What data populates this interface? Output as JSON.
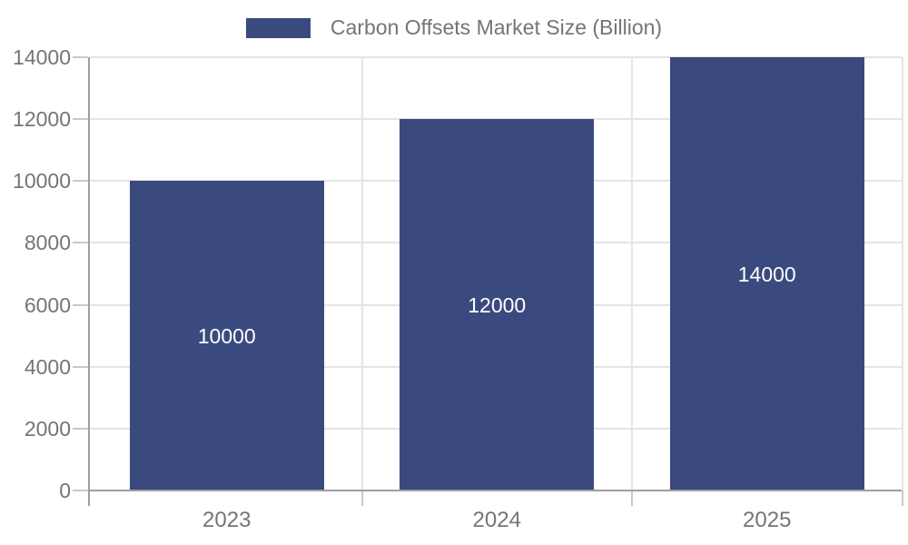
{
  "chart_data": {
    "type": "bar",
    "legend_label": "Carbon Offsets Market Size (Billion)",
    "categories": [
      "2023",
      "2024",
      "2025"
    ],
    "values": [
      10000,
      12000,
      14000
    ],
    "bar_value_labels": [
      "10000",
      "12000",
      "14000"
    ],
    "yticks": [
      0,
      2000,
      4000,
      6000,
      8000,
      10000,
      12000,
      14000
    ],
    "ylim": [
      0,
      14000
    ],
    "xlabel": "",
    "ylabel": "",
    "grid": "on",
    "legend_position": "top-center",
    "colors": {
      "bar": "#3a4a7f",
      "bar_value_text": "#ffffff",
      "tick_label_text": "#757575",
      "legend_text": "#757575",
      "gridline": "#e4e4e4",
      "axis_line": "#9f9f9f",
      "tick_mark": "#c9c9c9",
      "background": "#ffffff"
    }
  }
}
